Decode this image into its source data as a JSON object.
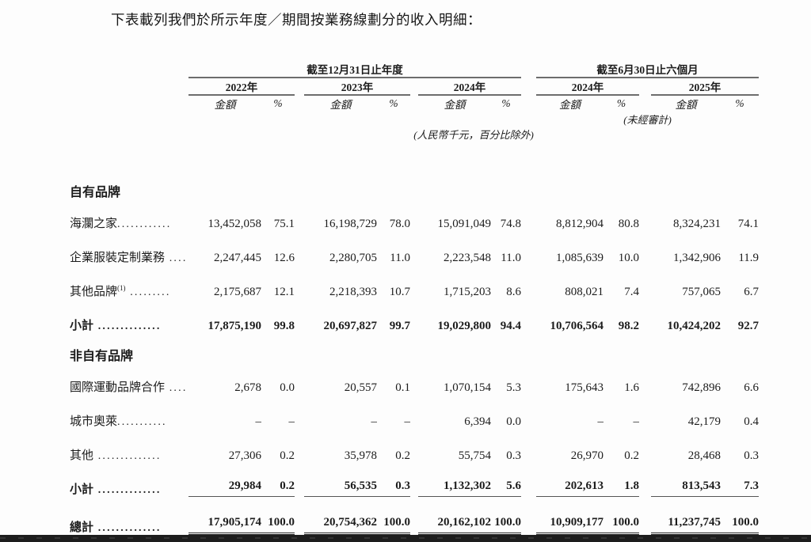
{
  "intro": "下表載列我們於所示年度／期間按業務線劃分的收入明細：",
  "table": {
    "groups": [
      {
        "label": "截至12月31日止年度",
        "years": [
          "2022年",
          "2023年",
          "2024年"
        ]
      },
      {
        "label": "截至6月30日止六個月",
        "years": [
          "2024年",
          "2025年"
        ]
      }
    ],
    "amount_header": "金額",
    "pct_header": "%",
    "unaudited_note": "(未經審計)",
    "unit_note": "(人民幣千元，百分比除外)",
    "sections": [
      {
        "header": "自有品牌",
        "rows": [
          {
            "label": "海瀾之家",
            "sup": "",
            "leader": "............",
            "bold": false,
            "values": [
              "13,452,058",
              "75.1",
              "16,198,729",
              "78.0",
              "15,091,049",
              "74.8",
              "8,812,904",
              "80.8",
              "8,324,231",
              "74.1"
            ]
          },
          {
            "label": "企業服裝定制業務",
            "sup": "",
            "leader": " ....",
            "bold": false,
            "values": [
              "2,247,445",
              "12.6",
              "2,280,705",
              "11.0",
              "2,223,548",
              "11.0",
              "1,085,639",
              "10.0",
              "1,342,906",
              "11.9"
            ]
          },
          {
            "label": "其他品牌",
            "sup": "(1)",
            "leader": " .........",
            "bold": false,
            "values": [
              "2,175,687",
              "12.1",
              "2,218,393",
              "10.7",
              "1,715,203",
              "8.6",
              "808,021",
              "7.4",
              "757,065",
              "6.7"
            ]
          },
          {
            "label": "小計",
            "sup": "",
            "leader": " ..............",
            "bold": true,
            "values": [
              "17,875,190",
              "99.8",
              "20,697,827",
              "99.7",
              "19,029,800",
              "94.4",
              "10,706,564",
              "98.2",
              "10,424,202",
              "92.7"
            ]
          }
        ]
      },
      {
        "header": "非自有品牌",
        "rows": [
          {
            "label": "國際運動品牌合作",
            "sup": "",
            "leader": " ....",
            "bold": false,
            "values": [
              "2,678",
              "0.0",
              "20,557",
              "0.1",
              "1,070,154",
              "5.3",
              "175,643",
              "1.6",
              "742,896",
              "6.6"
            ]
          },
          {
            "label": "城市奧萊",
            "sup": "",
            "leader": "...........",
            "bold": false,
            "values": [
              "–",
              "–",
              "–",
              "–",
              "6,394",
              "0.0",
              "–",
              "–",
              "42,179",
              "0.4"
            ]
          },
          {
            "label": "其他",
            "sup": "",
            "leader": " ..............",
            "bold": false,
            "values": [
              "27,306",
              "0.2",
              "35,978",
              "0.2",
              "55,754",
              "0.3",
              "26,970",
              "0.2",
              "28,468",
              "0.3"
            ]
          },
          {
            "label": "小計",
            "sup": "",
            "leader": " ..............",
            "bold": true,
            "rule": "single",
            "values": [
              "29,984",
              "0.2",
              "56,535",
              "0.3",
              "1,132,302",
              "5.6",
              "202,613",
              "1.8",
              "813,543",
              "7.3"
            ]
          }
        ]
      }
    ],
    "total_row": {
      "label": "總計",
      "sup": "",
      "leader": " ..............",
      "bold": true,
      "values": [
        "17,905,174",
        "100.0",
        "20,754,362",
        "100.0",
        "20,162,102",
        "100.0",
        "10,909,177",
        "100.0",
        "11,237,745",
        "100.0"
      ]
    }
  }
}
